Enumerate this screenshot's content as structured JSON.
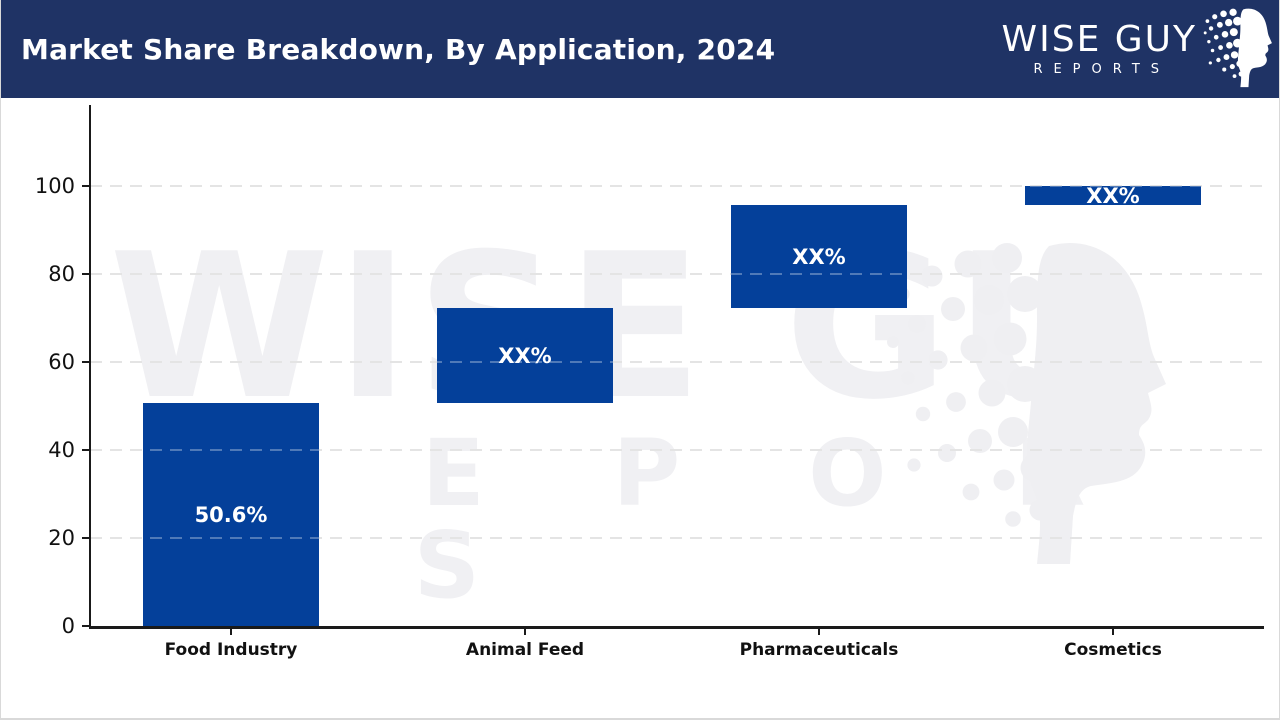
{
  "header": {
    "title": "Market Share Breakdown, By Application, 2024",
    "brand": {
      "name": "WISE GUY",
      "tagline": "REPORTS"
    }
  },
  "watermark": {
    "line1": "WISE GU",
    "line2": "R E P O R T S"
  },
  "colors": {
    "header_bg": "#1f3365",
    "bar": "#04409a",
    "gridline": "#d9d9d9",
    "axis": "#1a1a1a",
    "bar_label": "#ffffff",
    "watermark": "#f0f0f3"
  },
  "chart_data": {
    "type": "bar",
    "subtype": "waterfall — stacked market-share breakdown, segments sum to 100%",
    "title": "Market Share Breakdown, By Application, 2024",
    "categories": [
      "Food Industry",
      "Animal Feed",
      "Pharmaceuticals",
      "Cosmetics"
    ],
    "segments": [
      {
        "category": "Food Industry",
        "start": 0,
        "end": 50.6,
        "value_label": "50.6%"
      },
      {
        "category": "Animal Feed",
        "start": 50.6,
        "end": 72.2,
        "value_label": "XX%"
      },
      {
        "category": "Pharmaceuticals",
        "start": 72.2,
        "end": 95.6,
        "value_label": "XX%"
      },
      {
        "category": "Cosmetics",
        "start": 95.6,
        "end": 100,
        "value_label": "XX%"
      }
    ],
    "ylim": [
      0,
      100
    ],
    "yticks": [
      0,
      20,
      40,
      60,
      80,
      100
    ],
    "xlabel": "",
    "ylabel": "",
    "grid": "horizontal dashed",
    "legend": null
  }
}
